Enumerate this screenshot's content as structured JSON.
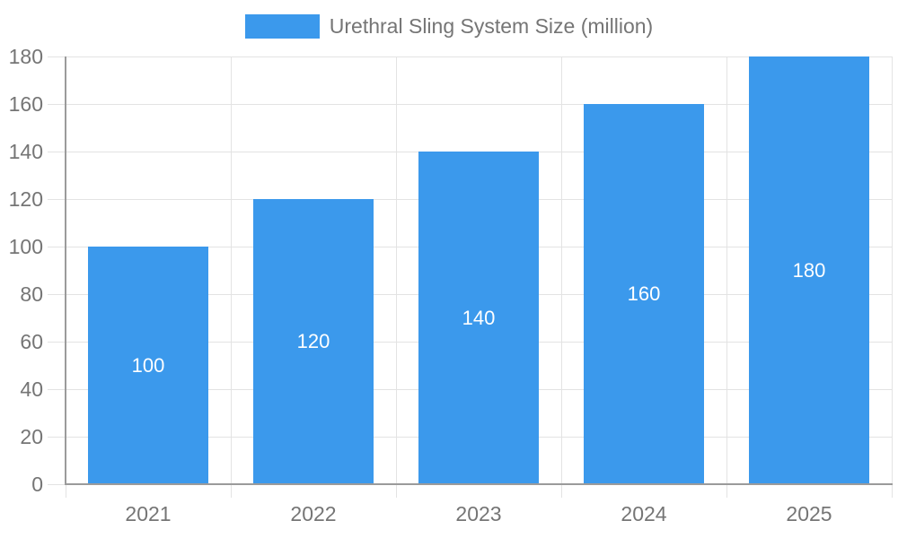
{
  "legend": {
    "label": "Urethral Sling System Size (million)"
  },
  "colors": {
    "bar": "#3B99EC",
    "grid": "#e3e3e3",
    "axis": "#9b9b9b",
    "tick_text": "#757575",
    "bar_label_text": "#ffffff",
    "background": "#ffffff"
  },
  "chart_data": {
    "type": "bar",
    "title": "Urethral Sling System Size (million)",
    "categories": [
      "2021",
      "2022",
      "2023",
      "2024",
      "2025"
    ],
    "values": [
      100,
      120,
      140,
      160,
      180
    ],
    "series": [
      {
        "name": "Urethral Sling System Size (million)",
        "values": [
          100,
          120,
          140,
          160,
          180
        ]
      }
    ],
    "xlabel": "",
    "ylabel": "",
    "ylim": [
      0,
      180
    ],
    "yticks": [
      0,
      20,
      40,
      60,
      80,
      100,
      120,
      140,
      160,
      180
    ],
    "grid": true,
    "legend_position": "top-center",
    "value_labels": "inside-center"
  }
}
